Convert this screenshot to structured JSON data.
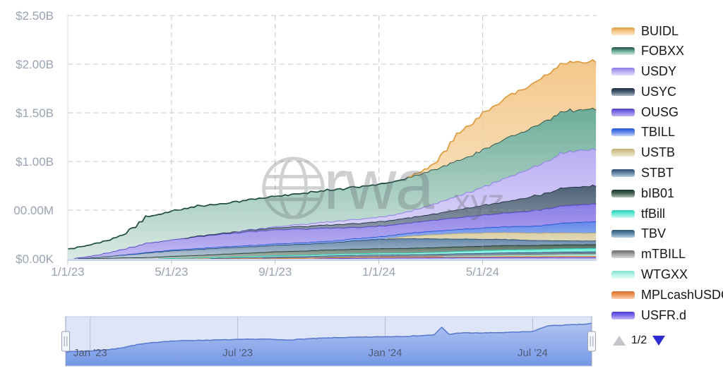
{
  "watermark": {
    "text_main": "rwa",
    "text_suffix": ".xyz"
  },
  "legend": {
    "pagination": {
      "current": "1/2"
    }
  },
  "chart_data": {
    "type": "area",
    "stacking": "normal",
    "units": "USD",
    "months": [
      "2023-01",
      "2023-02",
      "2023-03",
      "2023-04",
      "2023-05",
      "2023-06",
      "2023-07",
      "2023-08",
      "2023-09",
      "2023-10",
      "2023-11",
      "2023-12",
      "2024-01",
      "2024-02",
      "2024-03",
      "2024-04",
      "2024-05",
      "2024-06",
      "2024-07",
      "2024-08",
      "2024-09"
    ],
    "x_ticks": {
      "labels": [
        "1/1/23",
        "5/1/23",
        "9/1/23",
        "1/1/24",
        "5/1/24"
      ],
      "month_index": [
        0,
        4,
        8,
        12,
        16
      ]
    },
    "y_ticks": {
      "labels": [
        "$2.50B",
        "$2.00B",
        "$1.50B",
        "$1.00B",
        "00.00M",
        "$0.00K"
      ],
      "values_musd": [
        2500,
        2000,
        1500,
        1000,
        500,
        0
      ]
    },
    "ylim_musd": [
      0,
      2500
    ],
    "grid": "dashed",
    "legend_position": "right",
    "series": [
      {
        "name": "BUIDL",
        "stroke": "#DE9B3E",
        "fill_top": "#F3C585",
        "fill_bottom": "#FAE9CD",
        "values_musd": [
          0,
          0,
          0,
          0,
          0,
          0,
          0,
          0,
          0,
          0,
          0,
          0,
          0,
          0,
          45,
          280,
          375,
          425,
          450,
          500,
          485
        ]
      },
      {
        "name": "FOBXX",
        "stroke": "#1C4A40",
        "fill_top": "#64A793",
        "fill_bottom": "#D7E8E1",
        "values_musd": [
          100,
          118,
          140,
          270,
          295,
          305,
          300,
          305,
          312,
          318,
          322,
          330,
          335,
          342,
          352,
          362,
          382,
          402,
          412,
          425,
          420
        ]
      },
      {
        "name": "USDY",
        "stroke": "#8878E8",
        "fill_top": "#B6A9F2",
        "fill_bottom": "#E4DFFA",
        "values_musd": [
          0,
          0,
          0,
          0,
          0,
          0,
          0,
          5,
          12,
          22,
          32,
          42,
          46,
          62,
          100,
          142,
          192,
          252,
          305,
          362,
          377
        ]
      },
      {
        "name": "USYC",
        "stroke": "#1B2B3D",
        "fill_top": "#44586E",
        "fill_bottom": "#AEB9C4",
        "values_musd": [
          0,
          0,
          0,
          0,
          0,
          5,
          10,
          15,
          20,
          26,
          32,
          40,
          46,
          52,
          62,
          82,
          102,
          122,
          152,
          182,
          188
        ]
      },
      {
        "name": "OUSG",
        "stroke": "#5141C9",
        "fill_top": "#8374E4",
        "fill_bottom": "#C0B7F2",
        "values_musd": [
          0,
          22,
          55,
          95,
          105,
          122,
          132,
          142,
          146,
          142,
          136,
          116,
          110,
          106,
          112,
          122,
          132,
          142,
          162,
          176,
          181
        ]
      },
      {
        "name": "TBILL",
        "stroke": "#2155D4",
        "fill_top": "#5B82E8",
        "fill_bottom": "#C2D2F6",
        "values_musd": [
          0,
          0,
          2,
          5,
          8,
          10,
          12,
          13,
          14,
          15,
          17,
          21,
          26,
          31,
          36,
          42,
          52,
          62,
          72,
          100,
          115
        ]
      },
      {
        "name": "USTB",
        "stroke": "#BFB075",
        "fill_top": "#D8CDA0",
        "fill_bottom": "#EFE9D4",
        "values_musd": [
          0,
          0,
          0,
          0,
          0,
          0,
          0,
          0,
          0,
          0,
          0,
          0,
          0,
          22,
          42,
          56,
          66,
          71,
          76,
          81,
          80
        ]
      },
      {
        "name": "STBT",
        "stroke": "#26496D",
        "fill_top": "#5E81A4",
        "fill_bottom": "#BCCAD8",
        "values_musd": [
          0,
          10,
          26,
          46,
          56,
          61,
          63,
          65,
          67,
          69,
          72,
          86,
          96,
          100,
          90,
          80,
          70,
          60,
          50,
          42,
          38
        ]
      },
      {
        "name": "bIB01",
        "stroke": "#1B382E",
        "fill_top": "#46604F",
        "fill_bottom": "#B2BFB5",
        "values_musd": [
          0,
          5,
          12,
          16,
          22,
          26,
          31,
          36,
          41,
          43,
          45,
          46,
          47,
          48,
          48,
          47,
          46,
          45,
          42,
          40,
          38
        ]
      },
      {
        "name": "tfBill",
        "stroke": "#27CDB2",
        "fill_top": "#63EBD5",
        "fill_bottom": "#CDF8EF",
        "values_musd": [
          0,
          0,
          0,
          0,
          5,
          8,
          10,
          12,
          13,
          14,
          15,
          16,
          17,
          18,
          20,
          24,
          28,
          30,
          32,
          34,
          36
        ]
      },
      {
        "name": "TBV",
        "stroke": "#2B5273",
        "fill_top": "#5C85A6",
        "fill_bottom": "#BCCFDD",
        "values_musd": [
          0,
          0,
          0,
          0,
          0,
          0,
          5,
          8,
          10,
          11,
          12,
          13,
          14,
          14,
          15,
          15,
          15,
          16,
          16,
          16,
          16
        ]
      },
      {
        "name": "mTBILL",
        "stroke": "#6B6B6B",
        "fill_top": "#9C9C9C",
        "fill_bottom": "#D9D9D9",
        "values_musd": [
          0,
          0,
          0,
          0,
          0,
          0,
          0,
          0,
          5,
          6,
          8,
          9,
          10,
          10,
          11,
          12,
          12,
          13,
          13,
          14,
          14
        ]
      },
      {
        "name": "WTGXX",
        "stroke": "#7FE2CE",
        "fill_top": "#B5F2E4",
        "fill_bottom": "#E2FBF5",
        "values_musd": [
          0,
          0,
          0,
          0,
          0,
          0,
          0,
          0,
          0,
          0,
          0,
          0,
          0,
          0,
          0,
          5,
          8,
          10,
          12,
          14,
          16
        ]
      },
      {
        "name": "MPLcashUSDC",
        "stroke": "#D4702E",
        "fill_top": "#EE9454",
        "fill_bottom": "#F8D2B4",
        "values_musd": [
          0,
          0,
          0,
          0,
          2,
          4,
          5,
          6,
          7,
          8,
          8,
          9,
          9,
          9,
          10,
          10,
          10,
          11,
          11,
          12,
          12
        ]
      },
      {
        "name": "USFR.d",
        "stroke": "#4A3BD6",
        "fill_top": "#7A6BEA",
        "fill_bottom": "#C4BCF6",
        "values_musd": [
          0,
          0,
          0,
          0,
          0,
          0,
          0,
          0,
          0,
          0,
          5,
          8,
          10,
          11,
          12,
          13,
          14,
          15,
          15,
          16,
          16
        ]
      }
    ]
  },
  "navigator": {
    "labels": [
      "Jan '23",
      "Jul '23",
      "Jan '24",
      "Jul '24"
    ],
    "label_month_index": [
      0,
      6,
      12,
      18
    ],
    "profile": [
      [
        -1,
        0.3
      ],
      [
        0,
        0.32
      ],
      [
        1,
        0.36
      ],
      [
        2,
        0.46
      ],
      [
        3,
        0.52
      ],
      [
        4,
        0.54
      ],
      [
        5,
        0.55
      ],
      [
        6,
        0.56
      ],
      [
        7,
        0.57
      ],
      [
        8,
        0.55
      ],
      [
        9,
        0.58
      ],
      [
        10,
        0.6
      ],
      [
        11,
        0.61
      ],
      [
        12,
        0.62
      ],
      [
        13,
        0.63
      ],
      [
        14,
        0.66
      ],
      [
        14.3,
        0.82
      ],
      [
        14.6,
        0.67
      ],
      [
        15,
        0.7
      ],
      [
        16,
        0.7
      ],
      [
        17,
        0.71
      ],
      [
        18,
        0.73
      ],
      [
        18.6,
        0.85
      ],
      [
        19,
        0.86
      ],
      [
        20,
        0.88
      ],
      [
        20.4,
        0.9
      ]
    ],
    "colors": {
      "bg": "#DEE5F7",
      "line": "#5578CE",
      "fill_top": "#AFC3F0",
      "fill_bottom": "#7497E6",
      "handle": "#9AA3B8",
      "border": "#C2CADE"
    }
  }
}
